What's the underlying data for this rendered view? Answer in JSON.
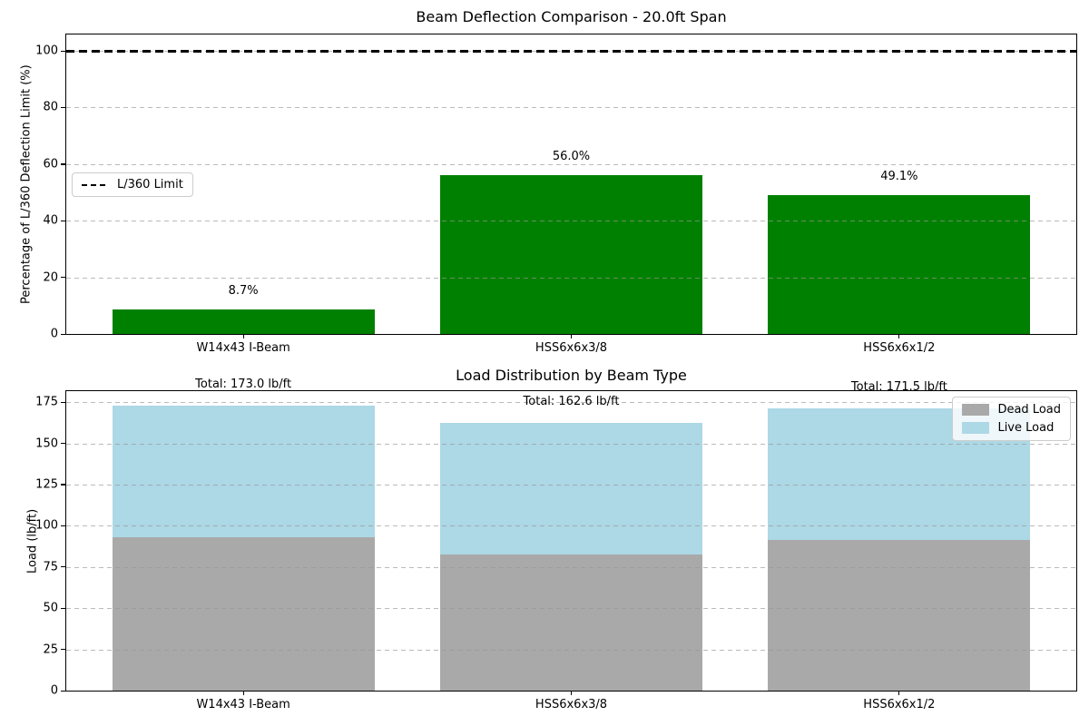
{
  "figure": {
    "background": "#ffffff"
  },
  "chart_data": [
    {
      "type": "bar",
      "title": "Beam Deflection Comparison - 20.0ft Span",
      "xlabel": "",
      "ylabel": "Percentage of L/360 Deflection Limit (%)",
      "categories": [
        "W14x43 I-Beam",
        "HSS6x6x3/8",
        "HSS6x6x1/2"
      ],
      "values": [
        8.7,
        56.0,
        49.1
      ],
      "bar_labels": [
        "8.7%",
        "56.0%",
        "49.1%"
      ],
      "bar_color": "#008000",
      "ylim": [
        0,
        105.8
      ],
      "yticks": [
        0,
        20,
        40,
        60,
        80,
        100
      ],
      "grid": true,
      "grid_style": "dashed",
      "reference_line": {
        "value": 100,
        "color": "#000000",
        "style": "dashed"
      },
      "legend": {
        "position": "center-left",
        "entries": [
          {
            "label": "L/360 Limit",
            "type": "dashed-line",
            "color": "#000000"
          }
        ]
      }
    },
    {
      "type": "bar-stacked",
      "title": "Load Distribution by Beam Type",
      "xlabel": "",
      "ylabel": "Load (lb/ft)",
      "categories": [
        "W14x43 I-Beam",
        "HSS6x6x3/8",
        "HSS6x6x1/2"
      ],
      "series": [
        {
          "name": "Dead Load",
          "color": "#a9a9a9",
          "values": [
            93.0,
            82.6,
            91.5
          ]
        },
        {
          "name": "Live Load",
          "color": "#add8e6",
          "values": [
            80.0,
            80.0,
            80.0
          ]
        }
      ],
      "totals": [
        173.0,
        162.6,
        171.5
      ],
      "total_labels": [
        "Total: 173.0 lb/ft",
        "Total: 162.6 lb/ft",
        "Total: 171.5 lb/ft"
      ],
      "ylim": [
        0,
        181.7
      ],
      "yticks": [
        0,
        25,
        50,
        75,
        100,
        125,
        150,
        175
      ],
      "grid": true,
      "grid_style": "dashed",
      "legend": {
        "position": "top-right",
        "entries": [
          {
            "label": "Dead Load",
            "type": "patch",
            "color": "#a9a9a9"
          },
          {
            "label": "Live Load",
            "type": "patch",
            "color": "#add8e6"
          }
        ]
      }
    }
  ]
}
